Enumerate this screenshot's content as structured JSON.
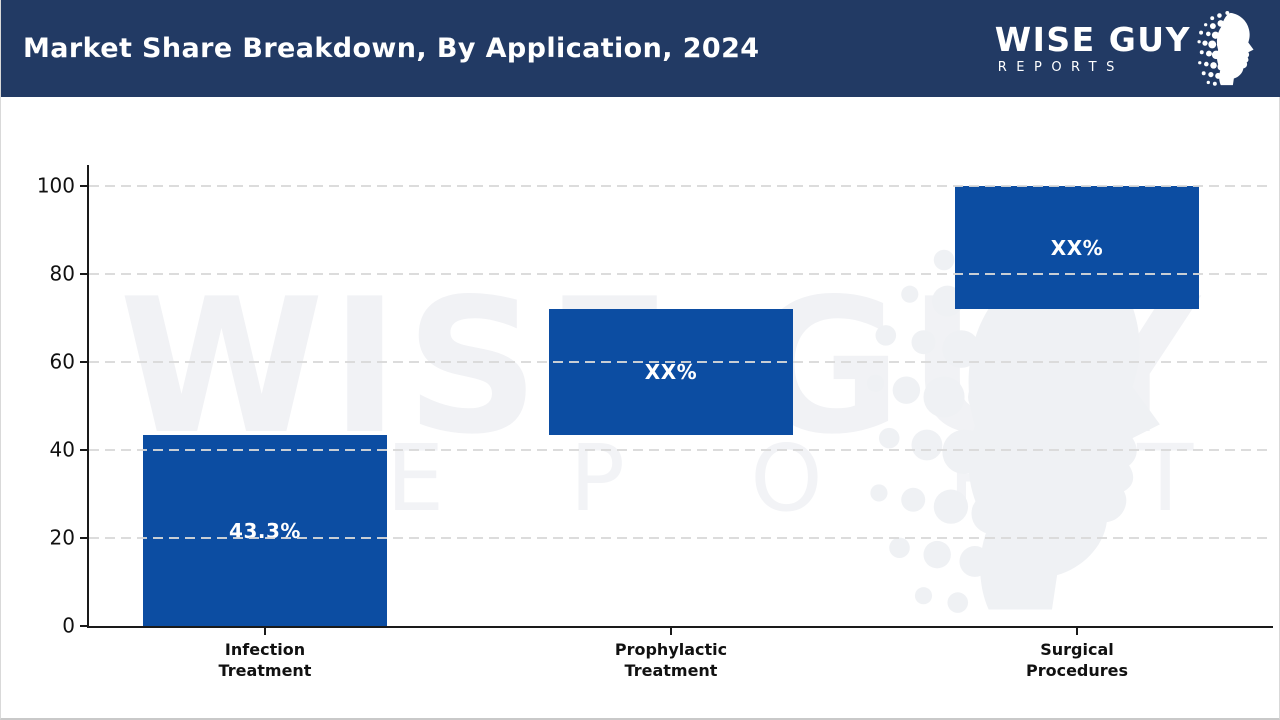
{
  "header": {
    "title": "Market Share Breakdown, By Application, 2024",
    "logo": {
      "wordmark": "WISE GUY",
      "subtext": "REPORTS"
    }
  },
  "watermark": {
    "wordmark": "WISE GUY",
    "subtext": "R E P O R T S"
  },
  "chart_data": {
    "type": "bar",
    "subtype": "waterfall",
    "title": "Market Share Breakdown, By Application, 2024",
    "categories": [
      [
        "Infection",
        "Treatment"
      ],
      [
        "Prophylactic",
        "Treatment"
      ],
      [
        "Surgical",
        "Procedures"
      ]
    ],
    "segments": [
      {
        "category": "Infection Treatment",
        "start": 0,
        "end": 43.3,
        "data_label": "43.3%"
      },
      {
        "category": "Prophylactic Treatment",
        "start": 43.3,
        "end": 72,
        "data_label": "XX%"
      },
      {
        "category": "Surgical Procedures",
        "start": 72,
        "end": 100,
        "data_label": "XX%"
      }
    ],
    "xlabel": "",
    "ylabel": "",
    "yticks": [
      0,
      20,
      40,
      60,
      80,
      100
    ],
    "ylim": [
      0,
      105
    ],
    "grid": {
      "horizontal": true,
      "style": "dashed",
      "color": "#D9D9D9"
    },
    "legend": "none",
    "bar_color": "#0C4DA2"
  },
  "colors": {
    "header_bg": "#223A64",
    "bar": "#0C4DA2",
    "grid": "#D9D9D9",
    "axis": "#1A1A1A",
    "bar_label": "#FFFFFF",
    "watermark": "#EFF1F4"
  }
}
